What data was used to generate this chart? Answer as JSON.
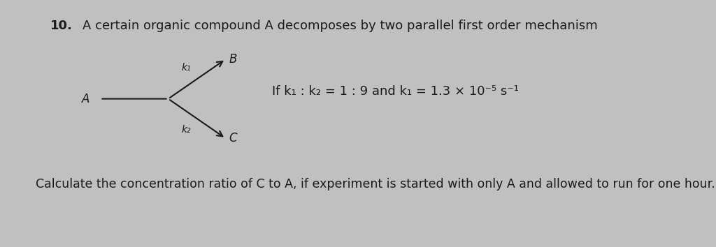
{
  "question_number": "10.",
  "main_text": "A certain organic compound A decomposes by two parallel first order mechanism",
  "condition_text": "If k₁ : k₂ = 1 : 9 and k₁ = 1.3 × 10⁻⁵ s⁻¹",
  "calculate_text": "Calculate the concentration ratio of C to A, if experiment is started with only A and allowed to run for one hour.",
  "label_A": "A",
  "label_B": "B",
  "label_C": "C",
  "label_k1": "k₁",
  "label_k2": "k₂",
  "bg_color": "#c0c0c0",
  "text_color": "#1a1a1a",
  "font_size_main": 13,
  "font_size_condition": 13,
  "font_size_calculate": 12.5,
  "font_size_labels": 12,
  "font_size_question": 13,
  "font_size_k": 10
}
